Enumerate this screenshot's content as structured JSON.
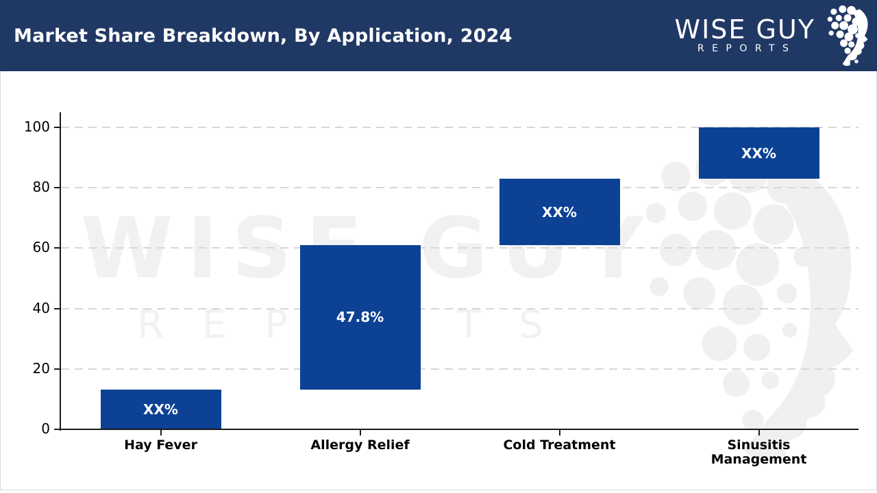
{
  "header": {
    "title": "Market Share Breakdown, By Application, 2024",
    "background_color": "#203864",
    "logo": {
      "line1": "WISE GUY",
      "line2": "REPORTS"
    }
  },
  "watermark": {
    "line1": "WISE GUY",
    "line2": "REPORTS"
  },
  "chart_data": {
    "type": "bar",
    "subtype": "waterfall",
    "title": "Market Share Breakdown, By Application, 2024",
    "categories": [
      "Hay Fever",
      "Allergy Relief",
      "Cold Treatment",
      "Sinusitis Management"
    ],
    "segments": [
      {
        "category": "Hay Fever",
        "start": 0,
        "end": 13.2,
        "label": "XX%"
      },
      {
        "category": "Allergy Relief",
        "start": 13.2,
        "end": 61.0,
        "label": "47.8%"
      },
      {
        "category": "Cold Treatment",
        "start": 61.0,
        "end": 82.9,
        "label": "XX%"
      },
      {
        "category": "Sinusitis Management",
        "start": 82.9,
        "end": 100,
        "label": "XX%"
      }
    ],
    "yticks": [
      0,
      20,
      40,
      60,
      80,
      100
    ],
    "ylim": [
      0,
      105
    ],
    "xlabel": "",
    "ylabel": "",
    "bar_color": "#0c4194",
    "grid": "dashed-horizontal",
    "legend": "none"
  }
}
